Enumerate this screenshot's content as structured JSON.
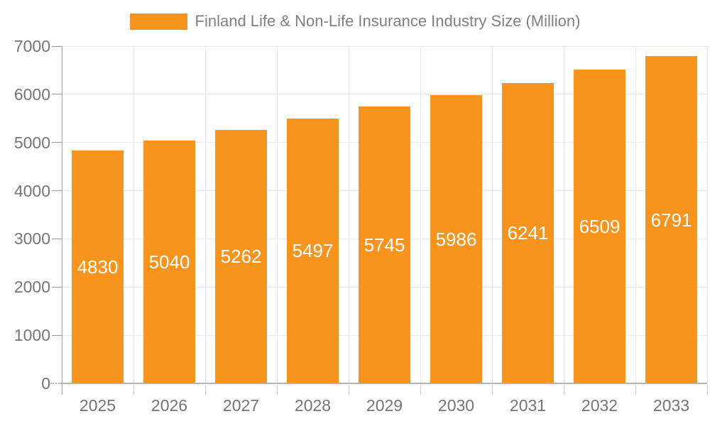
{
  "chart_data": {
    "type": "bar",
    "title": "Finland Life & Non-Life Insurance Industry Size (Million)",
    "legend": {
      "label": "Finland Life & Non-Life Insurance Industry Size (Million)",
      "position": "top"
    },
    "categories": [
      "2025",
      "2026",
      "2027",
      "2028",
      "2029",
      "2030",
      "2031",
      "2032",
      "2033"
    ],
    "values": [
      4830,
      5040,
      5262,
      5497,
      5745,
      5986,
      6241,
      6509,
      6791
    ],
    "value_labels": [
      "4830",
      "5040",
      "5262",
      "5497",
      "5745",
      "5986",
      "6241",
      "6509",
      "6791"
    ],
    "xlabel": "",
    "ylabel": "",
    "ylim": [
      0,
      7000
    ],
    "yticks": [
      0,
      1000,
      2000,
      3000,
      4000,
      5000,
      6000,
      7000
    ],
    "ytick_labels": [
      "0",
      "1000",
      "2000",
      "3000",
      "4000",
      "5000",
      "6000",
      "7000"
    ],
    "grid": true,
    "colors": {
      "bar": "#F7941E",
      "value_label": "#FFFFFF",
      "axis_label": "#757575",
      "title": "#808080",
      "gridline": "#E8E8E8",
      "axis_line": "#9E9E9E",
      "baseline": "#B3B3B3",
      "tick": "#999999",
      "tick_below": "#CCCCCC",
      "background": "#FFFFFF"
    }
  }
}
